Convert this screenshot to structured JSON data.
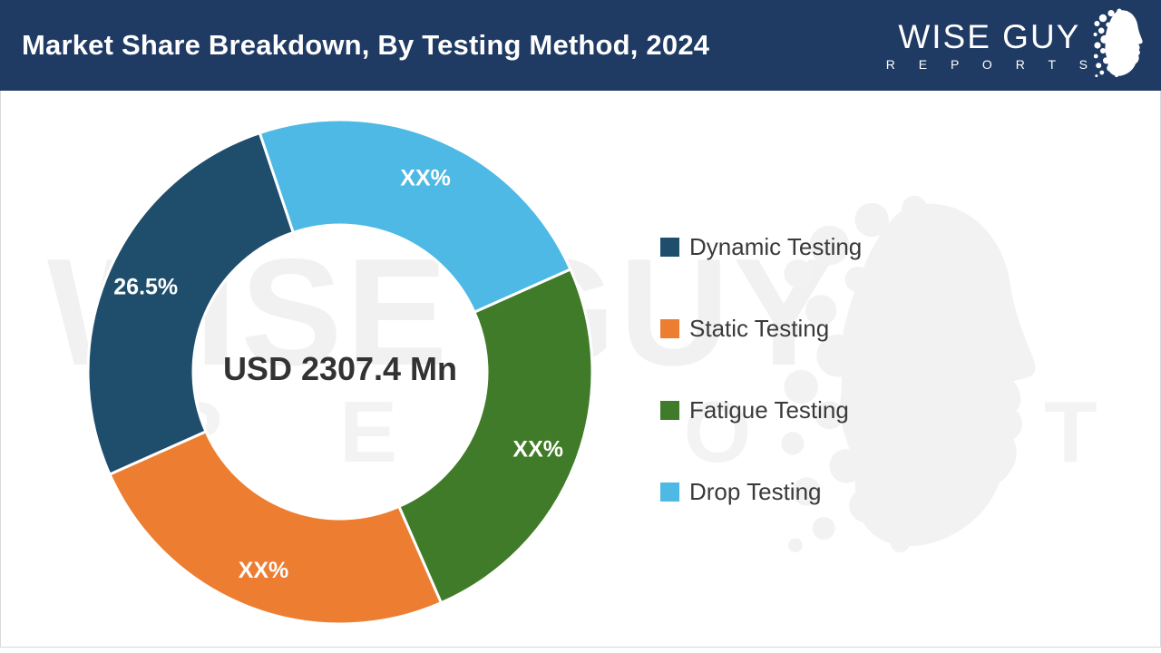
{
  "header": {
    "title": "Market Share Breakdown, By Testing Method, 2024",
    "logo": {
      "wordmark": "WISE GUY",
      "subtext": "R E P O R T S"
    }
  },
  "watermark": {
    "line1": "WISE GUY",
    "line2": "R E P O R T S"
  },
  "chart_data": {
    "type": "donut",
    "title": "Market Share Breakdown, By Testing Method, 2024",
    "center_label": "USD 2307.4 Mn",
    "start_angle_deg": 108.6,
    "direction": "counterclockwise",
    "legend_position": "right",
    "series": [
      {
        "name": "Dynamic Testing",
        "value": 26.5,
        "display_label": "26.5%",
        "color": "#1f4d6c"
      },
      {
        "name": "Static Testing",
        "value": 24.9,
        "display_label": "XX%",
        "color": "#ed7d31"
      },
      {
        "name": "Fatigue Testing",
        "value": 25.1,
        "display_label": "XX%",
        "color": "#3f7b28"
      },
      {
        "name": "Drop Testing",
        "value": 23.5,
        "display_label": "XX%",
        "color": "#4db9e4"
      }
    ]
  },
  "colors": {
    "header_bg": "#1f3a63",
    "center_text": "#333333",
    "legend_text": "#3a3a3a",
    "frame_border": "#d9d9d9",
    "watermark": "#f1f1f1",
    "slice_divider": "#ffffff"
  }
}
